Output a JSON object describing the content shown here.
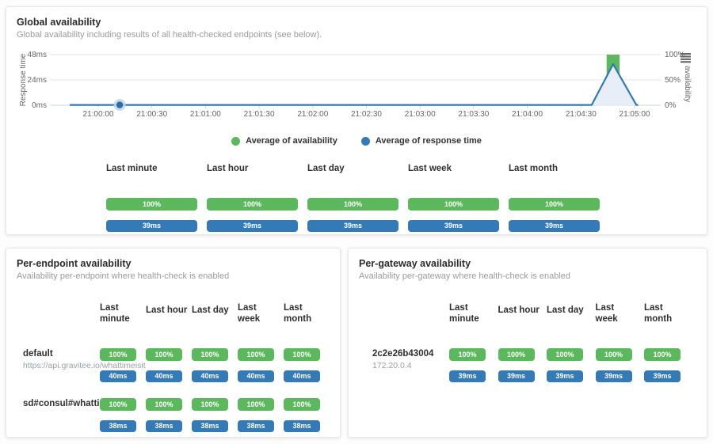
{
  "colors": {
    "green": "#5cb85c",
    "blue": "#337ab7",
    "line_blue": "#3079b5",
    "marker_fill": "#2e6da4",
    "marker_halo": "#bdd7ec",
    "area_fill": "#e7eef7",
    "grid": "#e6e6e6",
    "axis_line": "#ccd6eb",
    "axis_text": "#666666",
    "menu_icon": "#666666"
  },
  "global_panel": {
    "title": "Global availability",
    "subtitle": "Global availability including results of all health-checked endpoints (see below).",
    "legend": [
      {
        "label": "Average of availability",
        "color": "#5cb85c"
      },
      {
        "label": "Average of response time",
        "color": "#337ab7"
      }
    ],
    "summary": {
      "columns": [
        "Last minute",
        "Last hour",
        "Last day",
        "Last week",
        "Last month"
      ],
      "availability": [
        "100%",
        "100%",
        "100%",
        "100%",
        "100%"
      ],
      "response_time": [
        "39ms",
        "39ms",
        "39ms",
        "39ms",
        "39ms"
      ]
    }
  },
  "chart_data": {
    "type": "line+column",
    "title": "",
    "x_ticks": [
      "21:00:00",
      "21:00:30",
      "21:01:00",
      "21:01:30",
      "21:02:00",
      "21:02:30",
      "21:03:00",
      "21:03:30",
      "21:04:00",
      "21:04:30",
      "21:05:00"
    ],
    "x_tick_step_seconds": 30,
    "left_axis": {
      "label": "Response time",
      "tick_labels": [
        "0ms",
        "24ms",
        "48ms"
      ],
      "tick_values": [
        0,
        24,
        48
      ],
      "range": [
        0,
        48
      ]
    },
    "right_axis": {
      "label": "availability",
      "tick_labels": [
        "0%",
        "50%",
        "100%"
      ],
      "tick_values": [
        0,
        50,
        100
      ],
      "range": [
        0,
        100
      ]
    },
    "grid": "horizontal-only",
    "legend_position": "bottom-center",
    "series": [
      {
        "name": "Average of availability",
        "type": "column",
        "color": "#5cb85c",
        "points": [
          {
            "sec_from_2100": 288,
            "value_pct": 100
          }
        ]
      },
      {
        "name": "Average of response time",
        "type": "area-line",
        "color": "#3079b5",
        "points_sec_ms": [
          [
            -16,
            0.3
          ],
          [
            276,
            0.3
          ],
          [
            288,
            39
          ],
          [
            301,
            0.3
          ],
          [
            302,
            0.3
          ]
        ],
        "marker_point_sec_ms": [
          12,
          0.3
        ]
      }
    ]
  },
  "endpoint_panel": {
    "title": "Per-endpoint availability",
    "subtitle": "Availability per-endpoint where health-check is enabled",
    "columns": [
      "Last minute",
      "Last hour",
      "Last day",
      "Last week",
      "Last month"
    ],
    "rows": [
      {
        "name": "default",
        "detail": "https://api.gravitee.io/whattimeisit",
        "availability": [
          "100%",
          "100%",
          "100%",
          "100%",
          "100%"
        ],
        "response_time": [
          "40ms",
          "40ms",
          "40ms",
          "40ms",
          "40ms"
        ]
      },
      {
        "name": "sd#consul#whattimeisit",
        "detail": "",
        "availability": [
          "100%",
          "100%",
          "100%",
          "100%",
          "100%"
        ],
        "response_time": [
          "38ms",
          "38ms",
          "38ms",
          "38ms",
          "38ms"
        ]
      }
    ]
  },
  "gateway_panel": {
    "title": "Per-gateway availability",
    "subtitle": "Availability per-gateway where health-check is enabled",
    "columns": [
      "Last minute",
      "Last hour",
      "Last day",
      "Last week",
      "Last month"
    ],
    "rows": [
      {
        "name": "2c2e26b43004",
        "detail": "172.20.0.4",
        "availability": [
          "100%",
          "100%",
          "100%",
          "100%",
          "100%"
        ],
        "response_time": [
          "39ms",
          "39ms",
          "39ms",
          "39ms",
          "39ms"
        ]
      }
    ]
  }
}
